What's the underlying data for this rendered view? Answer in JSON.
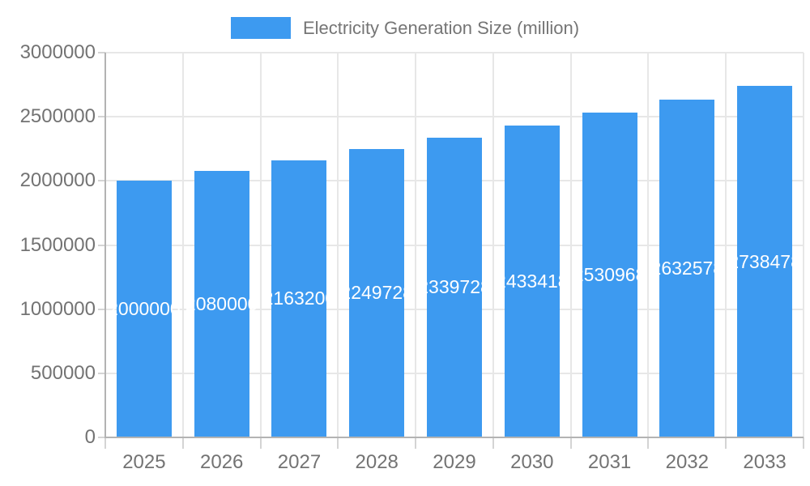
{
  "legend": {
    "label": "Electricity Generation Size (million)"
  },
  "colors": {
    "bar": "#3d9af0",
    "grid": "#e7e7e7",
    "boundary_grid": "#e7e7e7",
    "axis_line": "#b3b3b3",
    "tick": "#d4d4d4",
    "axis_text": "#737373",
    "legend_text": "#757575",
    "data_label_text": "#ffffff"
  },
  "chart_data": {
    "type": "bar",
    "title": "",
    "xlabel": "",
    "ylabel": "",
    "categories": [
      "2025",
      "2026",
      "2027",
      "2028",
      "2029",
      "2030",
      "2031",
      "2032",
      "2033"
    ],
    "series": [
      {
        "name": "Electricity Generation Size (million)",
        "values": [
          2000000,
          2080000,
          2163200,
          2249728,
          2339728,
          2433418,
          2530968,
          2632578,
          2738478
        ]
      }
    ],
    "ylim": [
      0,
      3000000
    ],
    "yticks": [
      0,
      500000,
      1000000,
      1500000,
      2000000,
      2500000,
      3000000
    ],
    "grid": true,
    "legend_position": "top-center",
    "bar_labels": "inside-center-white-clipped"
  }
}
